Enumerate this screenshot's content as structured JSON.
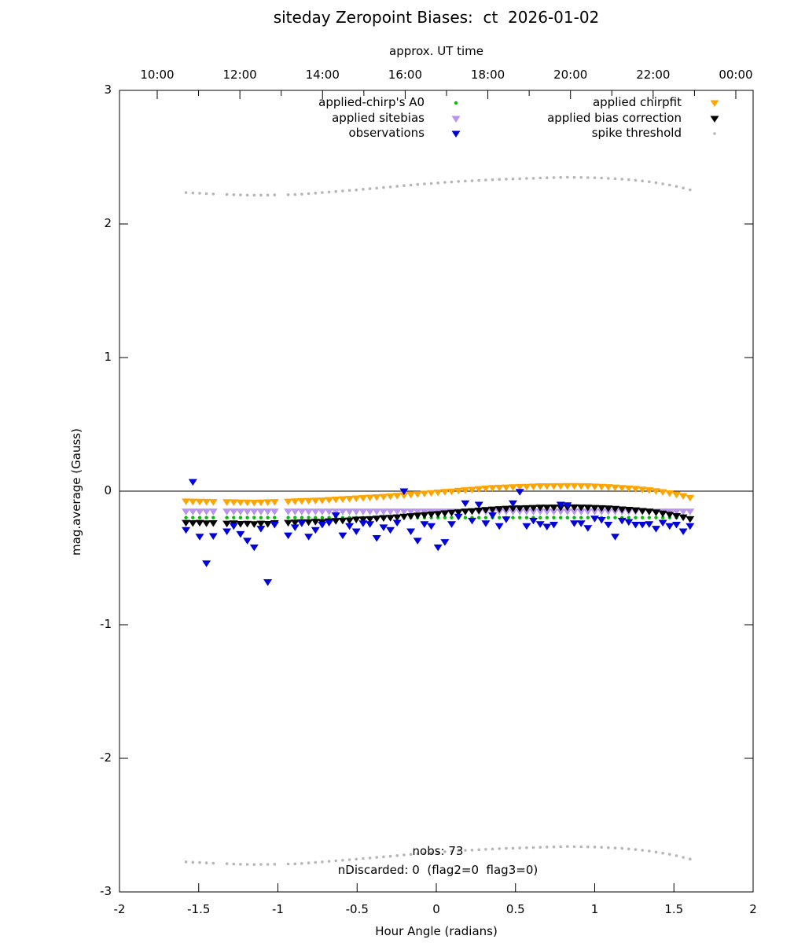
{
  "title": "siteday Zeropoint Biases:  ct  2026-01-02",
  "axes": {
    "top": {
      "label": "approx. UT time",
      "tick_labels": [
        "10:00",
        "12:00",
        "14:00",
        "16:00",
        "18:00",
        "20:00",
        "22:00",
        "00:00"
      ]
    },
    "bottom": {
      "label": "Hour Angle (radians)",
      "tick_values": [
        -2,
        -1.5,
        -1,
        -0.5,
        0,
        0.5,
        1,
        1.5,
        2
      ],
      "tick_labels": [
        "-2",
        "-1.5",
        "-1",
        "-0.5",
        "0",
        "0.5",
        "1",
        "1.5",
        "2"
      ]
    },
    "left": {
      "label": "mag.average (Gauss)",
      "tick_values": [
        3,
        2,
        1,
        0,
        -1,
        -2,
        -3
      ],
      "tick_labels": [
        "3",
        "2",
        "1",
        "0",
        "-1",
        "-2",
        "-3"
      ]
    }
  },
  "legend": {
    "columns": [
      [
        {
          "label": "applied-chirp's A0",
          "series": "applied_chirps_a0"
        },
        {
          "label": "applied sitebias",
          "series": "applied_sitebias"
        },
        {
          "label": "observations",
          "series": "observations"
        }
      ],
      [
        {
          "label": "applied chirpfit",
          "series": "applied_chirpfit"
        },
        {
          "label": "applied bias correction",
          "series": "applied_bias_correction"
        },
        {
          "label": "spike threshold",
          "series": "spike_threshold_upper"
        }
      ]
    ]
  },
  "annotations": {
    "nobs": "nobs: 73",
    "ndiscarded": "nDiscarded: 0  (flag2=0  flag3=0)"
  },
  "chart_data": {
    "type": "scatter",
    "xlabel": "Hour Angle (radians)",
    "x2label": "approx. UT time",
    "ylabel": "mag.average (Gauss)",
    "xlim": [
      -2,
      2
    ],
    "ylim": [
      -3,
      3
    ],
    "grid": false,
    "zero_line": 0,
    "n_points": 75,
    "x_start": -1.58,
    "x_step": 0.043,
    "gap_indices": [
      5,
      14
    ],
    "series": [
      {
        "id": "applied_chirps_a0",
        "name": "applied-chirp's A0",
        "color": "#00c000",
        "marker": "dot",
        "size": 2.2,
        "y_const": -0.198
      },
      {
        "id": "applied_chirpfit",
        "name": "applied chirpfit",
        "color": "#ffa500",
        "marker": "triangle-down",
        "y": [
          -0.076,
          -0.077,
          -0.078,
          -0.079,
          -0.08,
          null,
          -0.081,
          -0.082,
          -0.083,
          -0.084,
          -0.085,
          -0.083,
          -0.082,
          -0.08,
          null,
          -0.077,
          -0.075,
          -0.073,
          -0.071,
          -0.07,
          -0.068,
          -0.065,
          -0.062,
          -0.059,
          -0.056,
          -0.053,
          -0.05,
          -0.047,
          -0.044,
          -0.041,
          -0.038,
          -0.034,
          -0.03,
          -0.026,
          -0.021,
          -0.017,
          -0.013,
          -0.009,
          -0.005,
          -0.001,
          0.004,
          0.008,
          0.012,
          0.017,
          0.021,
          0.025,
          0.027,
          0.029,
          0.031,
          0.033,
          0.034,
          0.036,
          0.038,
          0.038,
          0.039,
          0.039,
          0.04,
          0.04,
          0.039,
          0.038,
          0.036,
          0.034,
          0.032,
          0.029,
          0.025,
          0.022,
          0.018,
          0.013,
          0.008,
          0.002,
          -0.006,
          -0.015,
          -0.025,
          -0.035,
          -0.048
        ]
      },
      {
        "id": "applied_sitebias",
        "name": "applied sitebias",
        "color": "#b894f0",
        "marker": "triangle-down",
        "y_const": -0.152
      },
      {
        "id": "applied_bias_correction",
        "name": "applied bias correction",
        "color": "#000000",
        "marker": "triangle-down",
        "y": [
          -0.236,
          -0.238,
          -0.236,
          -0.24,
          -0.238,
          null,
          -0.242,
          -0.24,
          -0.244,
          -0.243,
          -0.246,
          -0.242,
          -0.244,
          -0.238,
          null,
          -0.236,
          -0.234,
          -0.232,
          -0.232,
          -0.228,
          -0.23,
          -0.224,
          -0.222,
          -0.22,
          -0.218,
          -0.212,
          -0.21,
          -0.208,
          -0.205,
          -0.2,
          -0.198,
          -0.195,
          -0.19,
          -0.186,
          -0.182,
          -0.178,
          -0.173,
          -0.17,
          -0.165,
          -0.16,
          -0.157,
          -0.152,
          -0.148,
          -0.144,
          -0.14,
          -0.136,
          -0.133,
          -0.13,
          -0.128,
          -0.127,
          -0.126,
          -0.124,
          -0.122,
          -0.122,
          -0.121,
          -0.121,
          -0.12,
          -0.12,
          -0.121,
          -0.122,
          -0.124,
          -0.126,
          -0.128,
          -0.131,
          -0.135,
          -0.138,
          -0.142,
          -0.147,
          -0.152,
          -0.158,
          -0.166,
          -0.175,
          -0.185,
          -0.195,
          -0.208
        ]
      },
      {
        "id": "observations",
        "name": "observations",
        "color": "#0000dd",
        "marker": "triangle-down",
        "y": [
          -0.29,
          0.07,
          -0.34,
          -0.54,
          -0.335,
          null,
          -0.3,
          -0.26,
          -0.32,
          -0.37,
          -0.42,
          -0.28,
          -0.68,
          -0.25,
          null,
          -0.33,
          -0.27,
          -0.24,
          -0.34,
          -0.29,
          -0.25,
          -0.235,
          -0.18,
          -0.33,
          -0.26,
          -0.3,
          -0.24,
          -0.245,
          -0.35,
          -0.27,
          -0.29,
          -0.235,
          0.0,
          -0.3,
          -0.37,
          -0.245,
          -0.26,
          -0.42,
          -0.38,
          -0.245,
          -0.19,
          -0.09,
          -0.22,
          -0.1,
          -0.24,
          -0.18,
          -0.26,
          -0.21,
          -0.09,
          -0.005,
          -0.26,
          -0.22,
          -0.245,
          -0.265,
          -0.25,
          -0.1,
          -0.105,
          -0.24,
          -0.24,
          -0.275,
          -0.205,
          -0.215,
          -0.25,
          -0.34,
          -0.22,
          -0.23,
          -0.25,
          -0.25,
          -0.245,
          -0.28,
          -0.235,
          -0.26,
          -0.25,
          -0.3,
          -0.26
        ]
      },
      {
        "id": "spike_threshold_upper",
        "name": "spike threshold",
        "color": "#b6b6b6",
        "marker": "dot",
        "size": 1.8,
        "y": [
          2.235,
          2.232,
          2.23,
          2.227,
          2.225,
          null,
          2.221,
          2.219,
          2.217,
          2.216,
          2.215,
          2.216,
          2.216,
          2.217,
          null,
          2.219,
          2.22,
          2.223,
          2.227,
          2.231,
          2.235,
          2.239,
          2.243,
          2.247,
          2.251,
          2.255,
          2.26,
          2.264,
          2.268,
          2.273,
          2.277,
          2.282,
          2.287,
          2.291,
          2.296,
          2.3,
          2.303,
          2.307,
          2.311,
          2.314,
          2.318,
          2.321,
          2.323,
          2.326,
          2.329,
          2.331,
          2.334,
          2.336,
          2.337,
          2.339,
          2.341,
          2.342,
          2.344,
          2.346,
          2.347,
          2.349,
          2.35,
          2.349,
          2.348,
          2.347,
          2.346,
          2.344,
          2.341,
          2.339,
          2.336,
          2.332,
          2.327,
          2.322,
          2.316,
          2.308,
          2.3,
          2.292,
          2.281,
          2.269,
          2.256
        ]
      },
      {
        "id": "spike_threshold_lower",
        "name": "spike threshold",
        "color": "#b6b6b6",
        "marker": "dot",
        "size": 1.8,
        "y": [
          -2.775,
          -2.778,
          -2.78,
          -2.783,
          -2.785,
          null,
          -2.789,
          -2.791,
          -2.793,
          -2.794,
          -2.795,
          -2.794,
          -2.794,
          -2.793,
          null,
          -2.791,
          -2.79,
          -2.787,
          -2.783,
          -2.779,
          -2.775,
          -2.771,
          -2.767,
          -2.763,
          -2.759,
          -2.755,
          -2.75,
          -2.746,
          -2.742,
          -2.737,
          -2.733,
          -2.728,
          -2.723,
          -2.719,
          -2.714,
          -2.71,
          -2.707,
          -2.703,
          -2.699,
          -2.696,
          -2.692,
          -2.689,
          -2.687,
          -2.684,
          -2.681,
          -2.679,
          -2.676,
          -2.674,
          -2.673,
          -2.671,
          -2.669,
          -2.668,
          -2.666,
          -2.664,
          -2.663,
          -2.661,
          -2.66,
          -2.661,
          -2.662,
          -2.663,
          -2.664,
          -2.666,
          -2.669,
          -2.671,
          -2.674,
          -2.678,
          -2.683,
          -2.688,
          -2.694,
          -2.702,
          -2.71,
          -2.718,
          -2.729,
          -2.741,
          -2.754
        ]
      }
    ]
  }
}
